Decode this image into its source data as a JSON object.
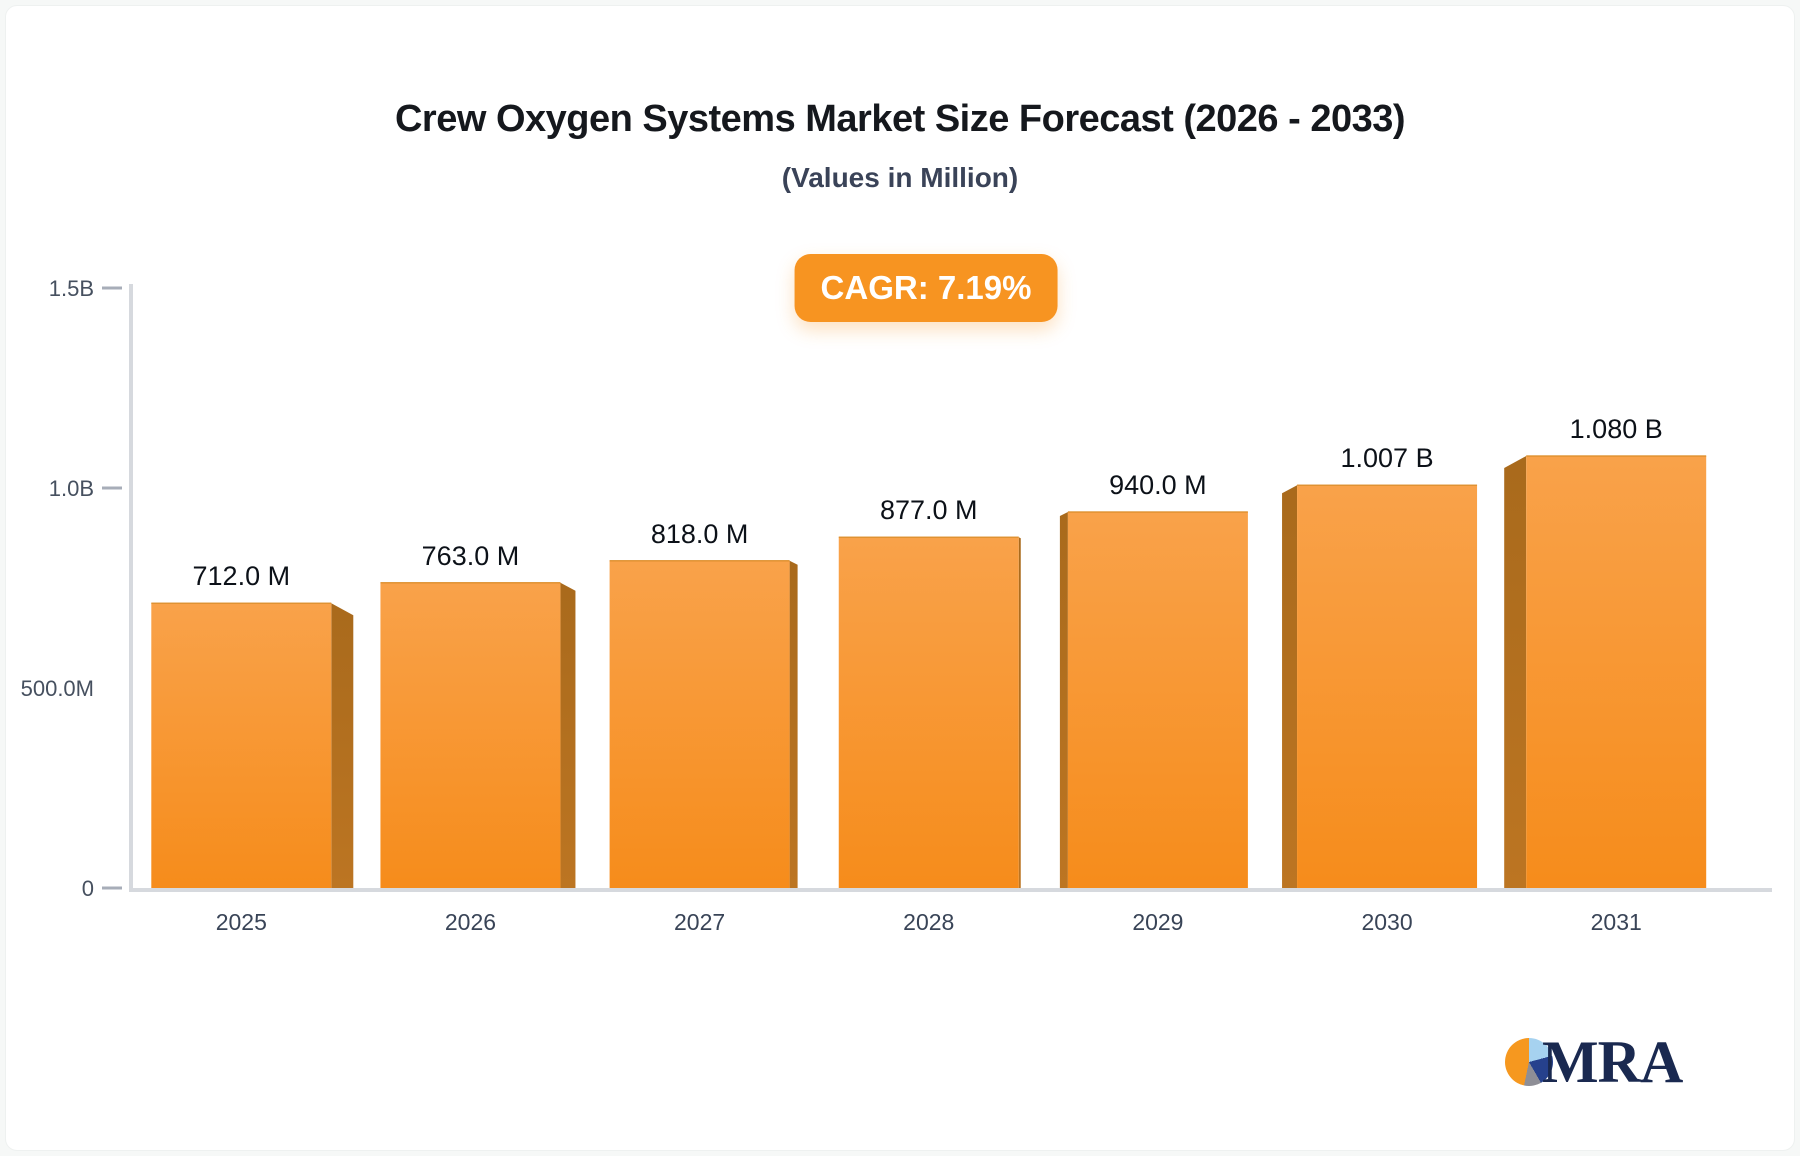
{
  "header": {
    "title": "Crew Oxygen Systems Market Size Forecast (2026 - 2033)",
    "subtitle": "(Values in Million)",
    "badge": "CAGR: 7.19%"
  },
  "logo": {
    "text": "MRA"
  },
  "chart_data": {
    "type": "bar",
    "title": "Crew Oxygen Systems Market Size Forecast (2026 - 2033)",
    "subtitle": "(Values in Million)",
    "cagr_percent": 7.19,
    "categories": [
      "2025",
      "2026",
      "2027",
      "2028",
      "2029",
      "2030",
      "2031"
    ],
    "values_millions": [
      712,
      763,
      818,
      877,
      940,
      1007,
      1080
    ],
    "data_labels": [
      "712.0 M",
      "763.0 M",
      "818.0 M",
      "877.0 M",
      "940.0 M",
      "1.007 B",
      "1.080 B"
    ],
    "y_axis": {
      "lim_millions": [
        0,
        1500
      ],
      "ticks": [
        {
          "label": "1.5B",
          "value": 1500,
          "dash": true
        },
        {
          "label": "1.0B",
          "value": 1000,
          "dash": true
        },
        {
          "label": "500.0M",
          "value": 500,
          "dash": false
        },
        {
          "label": "0",
          "value": 0,
          "dash": true
        }
      ]
    },
    "grid": false,
    "legend": false,
    "bar_style": "3d-perspective"
  },
  "colors": {
    "title": "#15181d",
    "subtitle": "#3a4358",
    "badge_bg": "#f79421",
    "badge_text": "#ffffff",
    "bar_front_top": "#f9a24a",
    "bar_front_bottom": "#f68c1b",
    "bar_side_top": "#a96a1c",
    "bar_side_bottom": "#bc7522",
    "bar_top_edge": "#dd8f2d",
    "axis_line": "#d6d9de",
    "tick_dash": "#a7adb8",
    "y_label": "#46505f",
    "x_label": "#394457",
    "data_label": "#0c1118",
    "logo_navy": "#1a2950",
    "pie_orange": "#f6981f",
    "pie_lightblue": "#a6d2f0",
    "pie_navy": "#26418d",
    "pie_gray": "#8e8e96"
  }
}
